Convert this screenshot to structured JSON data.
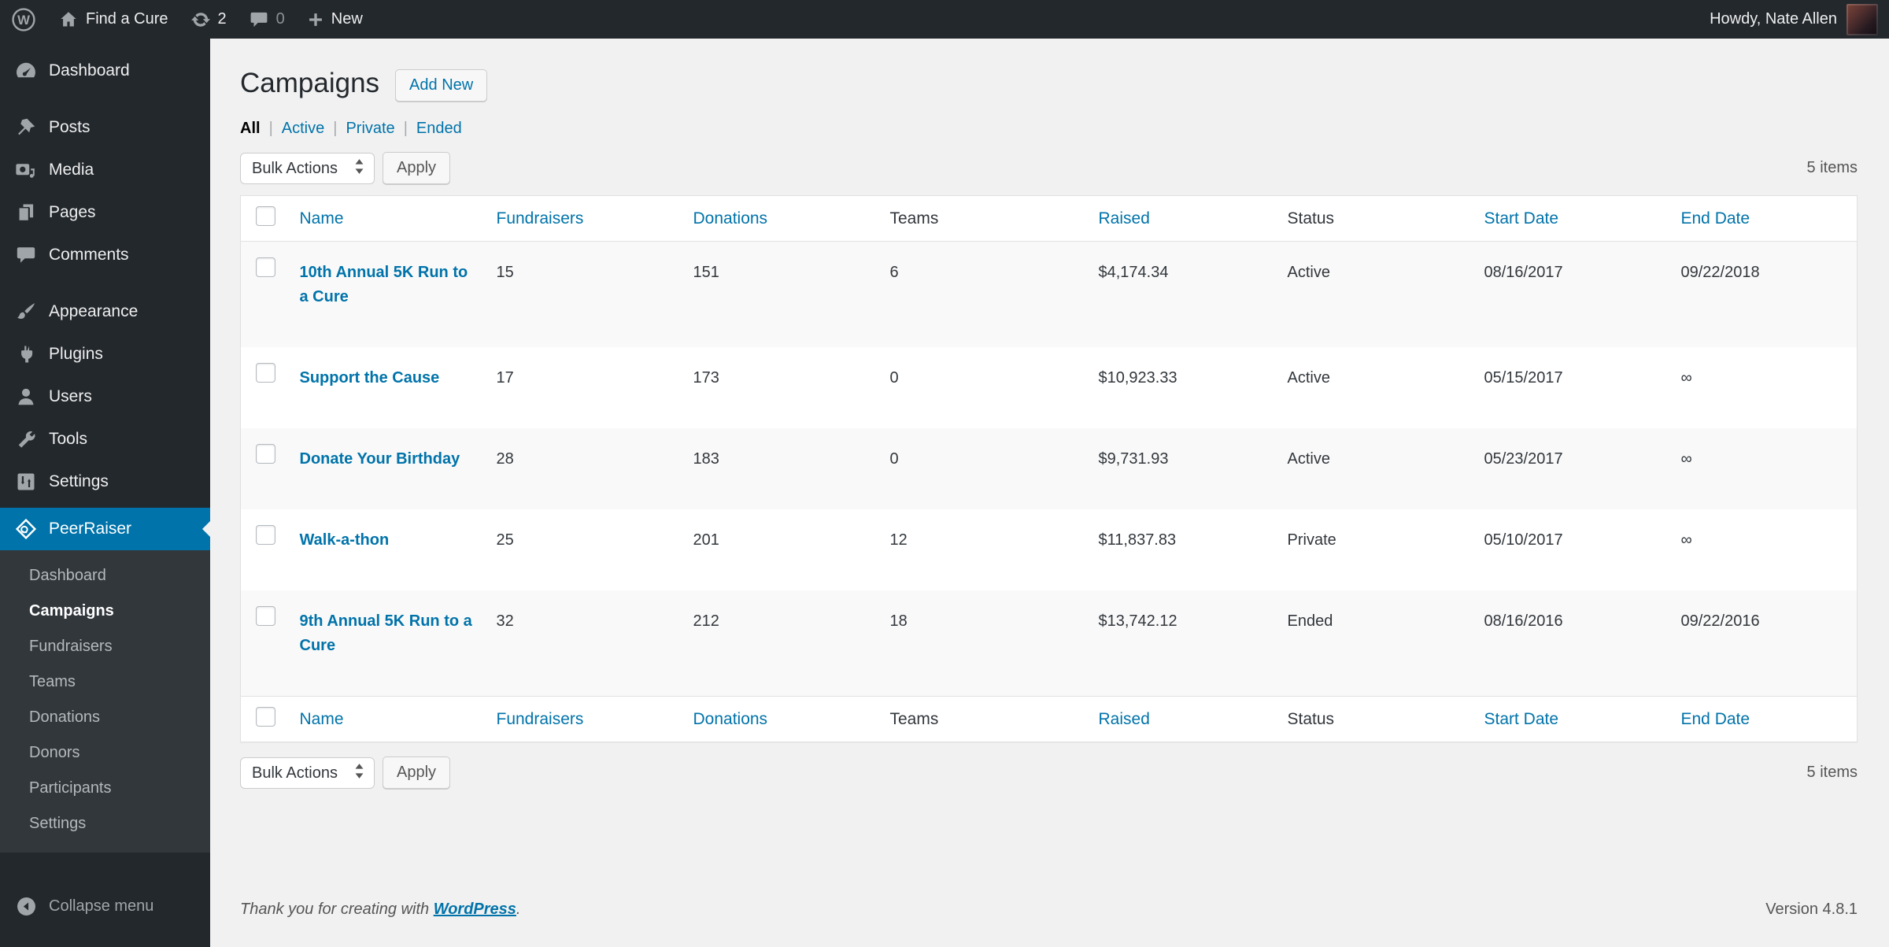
{
  "admin_bar": {
    "site_name": "Find a Cure",
    "update_count": "2",
    "comment_count": "0",
    "new_label": "New",
    "howdy": "Howdy, Nate Allen",
    "icons": [
      "wordpress-logo-icon",
      "home-icon",
      "update-icon",
      "comments-bubble-icon",
      "plus-icon"
    ]
  },
  "sidebar": {
    "items": [
      {
        "label": "Dashboard",
        "icon": "dashboard-gauge-icon"
      },
      {
        "label": "Posts",
        "icon": "pushpin-icon"
      },
      {
        "label": "Media",
        "icon": "media-camera-icon"
      },
      {
        "label": "Pages",
        "icon": "pages-icon"
      },
      {
        "label": "Comments",
        "icon": "comments-bubble-icon"
      },
      {
        "label": "Appearance",
        "icon": "paintbrush-icon"
      },
      {
        "label": "Plugins",
        "icon": "plugin-icon"
      },
      {
        "label": "Users",
        "icon": "user-icon"
      },
      {
        "label": "Tools",
        "icon": "wrench-icon"
      },
      {
        "label": "Settings",
        "icon": "sliders-icon"
      },
      {
        "label": "PeerRaiser",
        "icon": "peerraiser-diamond-icon",
        "current": true
      }
    ],
    "submenu": [
      {
        "label": "Dashboard"
      },
      {
        "label": "Campaigns",
        "current": true
      },
      {
        "label": "Fundraisers"
      },
      {
        "label": "Teams"
      },
      {
        "label": "Donations"
      },
      {
        "label": "Donors"
      },
      {
        "label": "Participants"
      },
      {
        "label": "Settings"
      }
    ],
    "collapse_label": "Collapse menu"
  },
  "page": {
    "title": "Campaigns",
    "add_new_label": "Add New",
    "filters": [
      {
        "label": "All",
        "current": true
      },
      {
        "label": "Active"
      },
      {
        "label": "Private"
      },
      {
        "label": "Ended"
      }
    ],
    "bulk_actions_label": "Bulk Actions",
    "apply_label": "Apply",
    "items_count": "5 items"
  },
  "table": {
    "columns": [
      {
        "key": "name",
        "label": "Name",
        "sortable": true
      },
      {
        "key": "fundraisers",
        "label": "Fundraisers",
        "sortable": true
      },
      {
        "key": "donations",
        "label": "Donations",
        "sortable": true
      },
      {
        "key": "teams",
        "label": "Teams",
        "sortable": false
      },
      {
        "key": "raised",
        "label": "Raised",
        "sortable": true
      },
      {
        "key": "status",
        "label": "Status",
        "sortable": false
      },
      {
        "key": "start_date",
        "label": "Start Date",
        "sortable": true
      },
      {
        "key": "end_date",
        "label": "End Date",
        "sortable": true
      }
    ],
    "rows": [
      {
        "name": "10th Annual 5K Run to a Cure",
        "fundraisers": "15",
        "donations": "151",
        "teams": "6",
        "raised": "$4,174.34",
        "status": "Active",
        "start_date": "08/16/2017",
        "end_date": "09/22/2018"
      },
      {
        "name": "Support the Cause",
        "fundraisers": "17",
        "donations": "173",
        "teams": "0",
        "raised": "$10,923.33",
        "status": "Active",
        "start_date": "05/15/2017",
        "end_date": "∞"
      },
      {
        "name": "Donate Your Birthday",
        "fundraisers": "28",
        "donations": "183",
        "teams": "0",
        "raised": "$9,731.93",
        "status": "Active",
        "start_date": "05/23/2017",
        "end_date": "∞"
      },
      {
        "name": "Walk-a-thon",
        "fundraisers": "25",
        "donations": "201",
        "teams": "12",
        "raised": "$11,837.83",
        "status": "Private",
        "start_date": "05/10/2017",
        "end_date": "∞"
      },
      {
        "name": "9th Annual 5K Run to a Cure",
        "fundraisers": "32",
        "donations": "212",
        "teams": "18",
        "raised": "$13,742.12",
        "status": "Ended",
        "start_date": "08/16/2016",
        "end_date": "09/22/2016"
      }
    ]
  },
  "footer": {
    "thanks_prefix": "Thank you for creating with ",
    "thanks_link": "WordPress",
    "thanks_suffix": ".",
    "version": "Version 4.8.1"
  },
  "colors": {
    "accent": "#0073aa",
    "admin_bar_bg": "#23282d",
    "submenu_bg": "#32373c",
    "content_bg": "#f1f1f1",
    "row_alt_bg": "#f9f9f9",
    "link_blue": "#0073aa"
  }
}
